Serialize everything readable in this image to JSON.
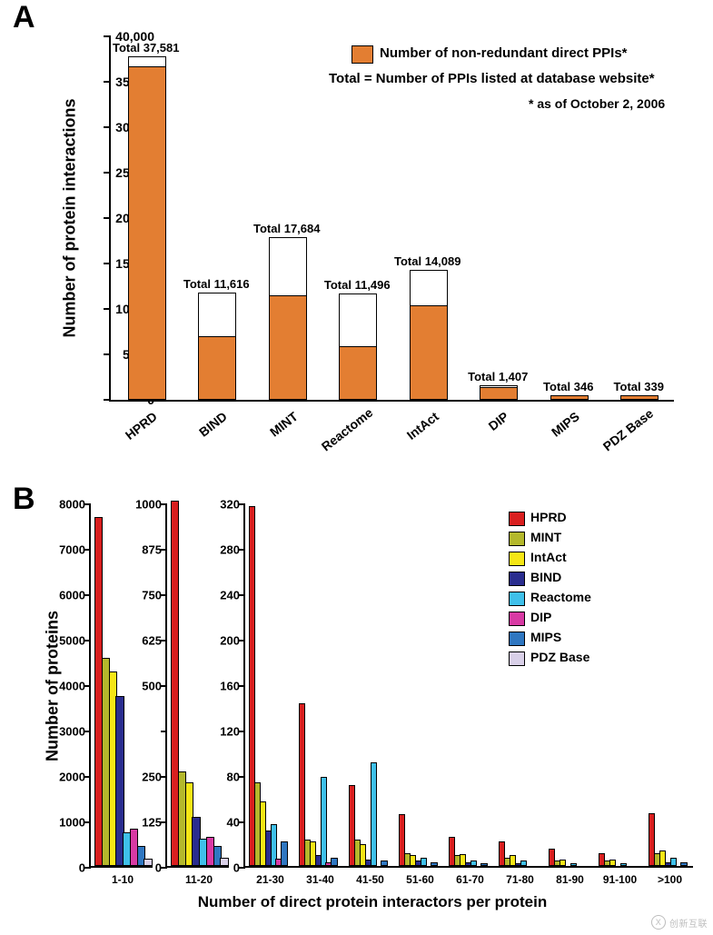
{
  "panel_labels": {
    "A": "A",
    "B": "B"
  },
  "panelA": {
    "type": "bar",
    "ylabel": "Number of protein interactions",
    "ylim": [
      0,
      40000
    ],
    "ytick_step": 5000,
    "yticks": [
      "0",
      "5,000",
      "10,000",
      "15,000",
      "20,000",
      "25,000",
      "30,000",
      "35,000",
      "40,000"
    ],
    "bar_fill_color": "#e37e32",
    "bar_outline_color": "#000000",
    "legend": {
      "swatch_color": "#e37e32",
      "text1": "Number of non-redundant direct PPIs*",
      "text2": "Total = Number of PPIs listed at database website*",
      "note": "* as of October 2, 2006"
    },
    "categories": [
      "HPRD",
      "BIND",
      "MINT",
      "Reactome",
      "IntAct",
      "DIP",
      "MIPS",
      "PDZ Base"
    ],
    "totals": [
      37581,
      11616,
      17684,
      11496,
      14089,
      1407,
      346,
      339
    ],
    "filled": [
      36500,
      6800,
      11300,
      5700,
      10200,
      1200,
      300,
      290
    ],
    "total_labels": [
      "Total 37,581",
      "Total 11,616",
      "Total 17,684",
      "Total 11,496",
      "Total 14,089",
      "Total 1,407",
      "Total 346",
      "Total 339"
    ]
  },
  "panelB": {
    "type": "grouped-bar-broken-axis",
    "ylabel": "Number of proteins",
    "xlabel": "Number of direct protein interactors per protein",
    "series": [
      {
        "name": "HPRD",
        "color": "#d91f1f"
      },
      {
        "name": "MINT",
        "color": "#b4b82c"
      },
      {
        "name": "IntAct",
        "color": "#f6e615"
      },
      {
        "name": "BIND",
        "color": "#2a2d8f"
      },
      {
        "name": "Reactome",
        "color": "#3fc0ea"
      },
      {
        "name": "DIP",
        "color": "#d83aa4"
      },
      {
        "name": "MIPS",
        "color": "#2f77c1"
      },
      {
        "name": "PDZ Base",
        "color": "#d9d0e8"
      }
    ],
    "segments": [
      {
        "ylim": [
          0,
          8000
        ],
        "ytick_step": 1000,
        "yticks": [
          "0",
          "1000",
          "2000",
          "3000",
          "4000",
          "5000",
          "6000",
          "7000",
          "8000"
        ],
        "categories": [
          {
            "label": "1-10",
            "values": [
              7650,
              4550,
              4250,
              3700,
              700,
              780,
              400,
              120
            ]
          }
        ]
      },
      {
        "ylim": [
          0,
          1000
        ],
        "ytick_step": 125,
        "yticks": [
          "0",
          "125",
          "250",
          "",
          "500",
          "625",
          "750",
          "875",
          "1000"
        ],
        "categories": [
          {
            "label": "11-20",
            "values": [
              1000,
              255,
              225,
              130,
              70,
              75,
              50,
              18
            ]
          }
        ]
      },
      {
        "ylim": [
          0,
          320
        ],
        "ytick_step": 40,
        "yticks": [
          "0",
          "40",
          "80",
          "120",
          "160",
          "200",
          "240",
          "280",
          "320"
        ],
        "categories": [
          {
            "label": "21-30",
            "values": [
              315,
              72,
              55,
              30,
              35,
              5,
              20,
              0
            ]
          },
          {
            "label": "31-40",
            "values": [
              142,
              22,
              20,
              8,
              77,
              2,
              6,
              0
            ]
          },
          {
            "label": "41-50",
            "values": [
              70,
              22,
              18,
              4,
              90,
              0,
              3,
              0
            ]
          },
          {
            "label": "51-60",
            "values": [
              44,
              10,
              8,
              3,
              6,
              0,
              2,
              0
            ]
          },
          {
            "label": "61-70",
            "values": [
              24,
              8,
              9,
              2,
              3,
              0,
              1,
              0
            ]
          },
          {
            "label": "71-80",
            "values": [
              20,
              6,
              8,
              1,
              3,
              0,
              0,
              0
            ]
          },
          {
            "label": "81-90",
            "values": [
              14,
              3,
              4,
              0,
              1,
              0,
              0,
              0
            ]
          },
          {
            "label": "91-100",
            "values": [
              10,
              3,
              4,
              0,
              1,
              0,
              0,
              0
            ]
          },
          {
            "label": ">100",
            "values": [
              45,
              10,
              12,
              2,
              6,
              0,
              2,
              0
            ]
          }
        ]
      }
    ]
  },
  "watermark": "创新互联"
}
